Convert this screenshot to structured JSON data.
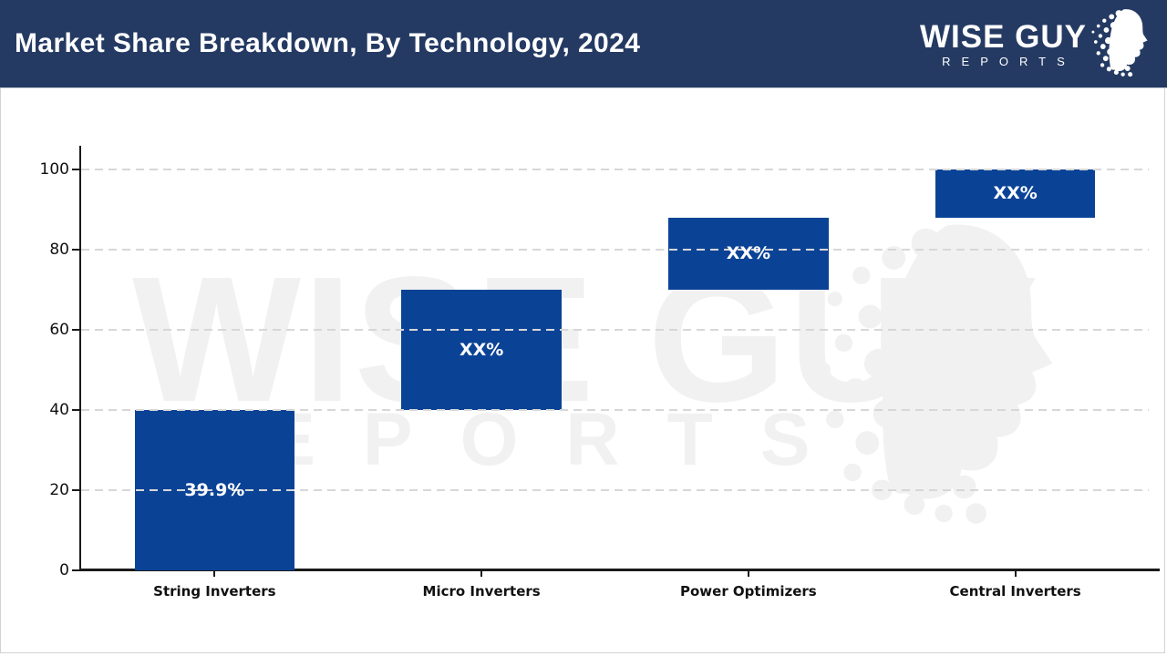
{
  "header": {
    "title": "Market Share Breakdown, By Technology, 2024",
    "logo": {
      "line1": "WISE GUY",
      "line2": "REPORTS"
    }
  },
  "watermark": {
    "line1": "WISE GUY",
    "line2": "REPORTS"
  },
  "colors": {
    "header_bg": "#243a63",
    "bar": "#0a4396",
    "bar_label": "#ffffff",
    "grid": "#d7d7d7",
    "axis": "#1a1a1a",
    "watermark": "#f1f1f2"
  },
  "chart_data": {
    "type": "bar",
    "variant": "waterfall",
    "title": "Market Share Breakdown, By Technology, 2024",
    "categories": [
      "String Inverters",
      "Micro Inverters",
      "Power Optimizers",
      "Central Inverters"
    ],
    "bars": [
      {
        "category": "String Inverters",
        "from": 0,
        "to": 39.9,
        "label": "39.9%"
      },
      {
        "category": "Micro Inverters",
        "from": 39.9,
        "to": 70,
        "label": "XX%"
      },
      {
        "category": "Power Optimizers",
        "from": 70,
        "to": 88,
        "label": "XX%"
      },
      {
        "category": "Central Inverters",
        "from": 88,
        "to": 100,
        "label": "XX%"
      }
    ],
    "xlabel": "",
    "ylabel": "",
    "ylim": [
      0,
      100
    ],
    "yticks": [
      0,
      20,
      40,
      60,
      80,
      100
    ],
    "grid": "horizontal-dashed",
    "legend": "none",
    "bar_color": "#0a4396",
    "bar_label_color": "#ffffff"
  }
}
